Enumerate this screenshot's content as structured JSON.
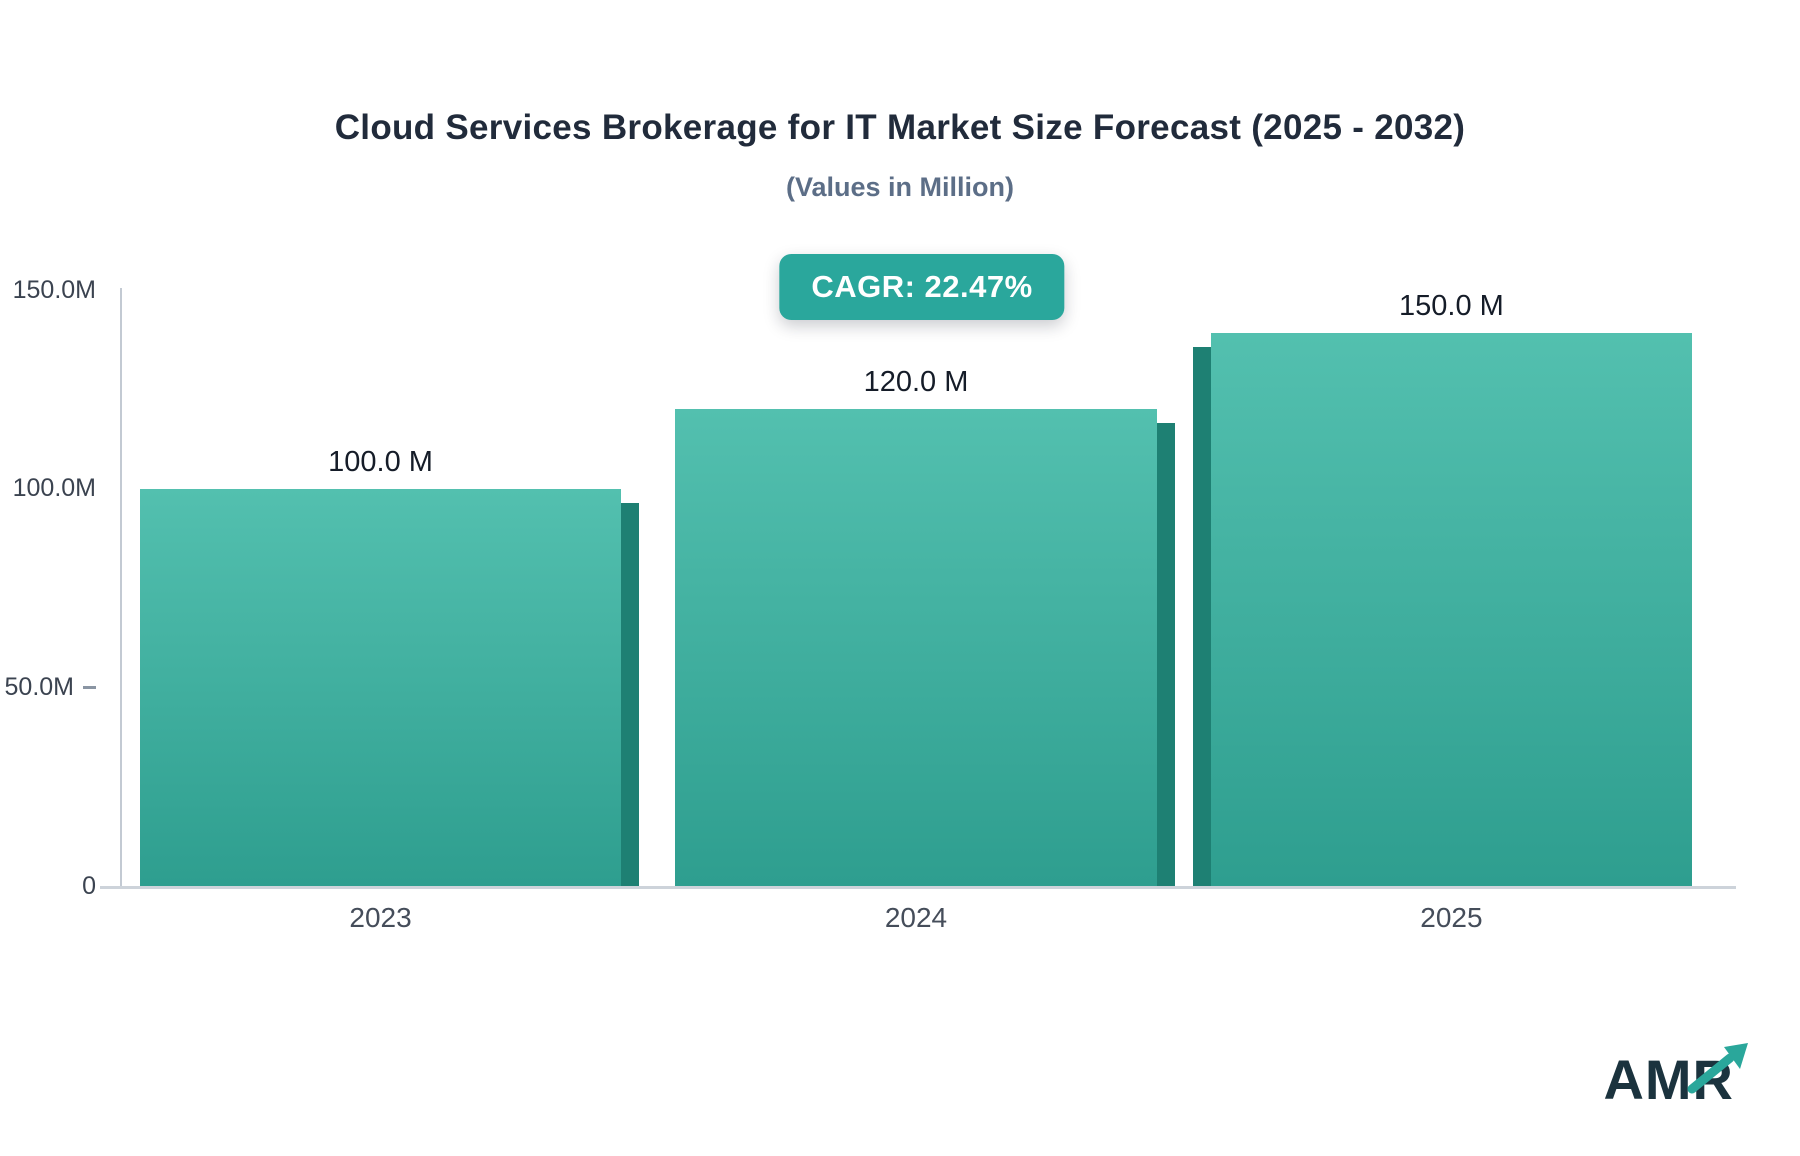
{
  "header": {
    "title": "Cloud Services Brokerage for IT Market Size Forecast (2025 - 2032)",
    "subtitle": "(Values in Million)"
  },
  "badge": {
    "label": "CAGR: 22.47%"
  },
  "logo": {
    "text": "AMR"
  },
  "chart_data": {
    "type": "bar",
    "title": "Cloud Services Brokerage for IT Market Size Forecast (2025 - 2032)",
    "subtitle": "(Values in Million)",
    "unit": "Million",
    "cagr": "22.47%",
    "categories": [
      "2023",
      "2024",
      "2025"
    ],
    "values": [
      100,
      120,
      150
    ],
    "value_labels": [
      "100.0 M",
      "120.0 M",
      "150.0 M"
    ],
    "ylim": [
      0,
      150
    ],
    "yticks": [
      {
        "value": 150,
        "label": "150.0M",
        "dash": false
      },
      {
        "value": 100,
        "label": "100.0M",
        "dash": false
      },
      {
        "value": 50,
        "label": "50.0M",
        "dash": true
      },
      {
        "value": 0,
        "label": "0",
        "dash": false
      }
    ],
    "grid": false,
    "legend": false,
    "colors": {
      "bar_top": "#53c0af",
      "bar_bottom": "#2e9e8f",
      "bar_side": "#1e8073",
      "badge_bg": "#2aa79c",
      "accent": "#2aa79b",
      "title_text": "#212b3b",
      "subtitle_text": "#5c6e87"
    }
  }
}
